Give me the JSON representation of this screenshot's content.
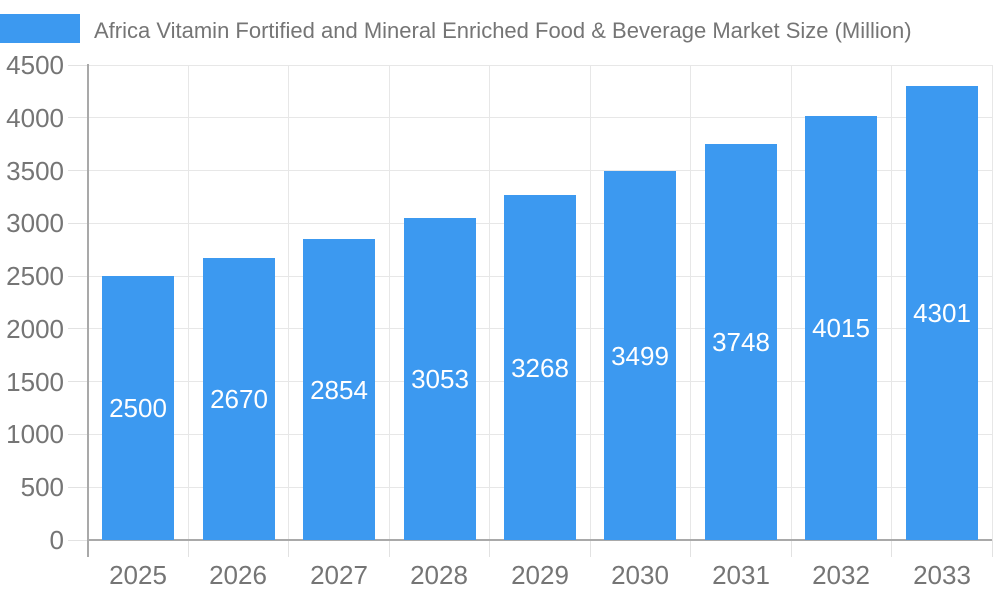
{
  "chart_data": {
    "type": "bar",
    "title": "Africa Vitamin Fortified and Mineral Enriched Food & Beverage Market Size (Million)",
    "categories": [
      "2025",
      "2026",
      "2027",
      "2028",
      "2029",
      "2030",
      "2031",
      "2032",
      "2033"
    ],
    "values": [
      2500,
      2670,
      2854,
      3053,
      3268,
      3499,
      3748,
      4015,
      4301
    ],
    "xlabel": "",
    "ylabel": "",
    "ylim": [
      0,
      4500
    ],
    "ytick_step": 500,
    "ytick_labels": [
      "0",
      "500",
      "1000",
      "1500",
      "2000",
      "2500",
      "3000",
      "3500",
      "4000",
      "4500"
    ],
    "grid": true,
    "legend_position": "top-left",
    "bar_labels_shown": true,
    "colors": {
      "bar": "#3c99f0",
      "bar_label_text": "#ffffff",
      "axis_text": "#757575",
      "title_text": "#757575",
      "gridline": "#e7e7e7",
      "axis_line": "#a9a9a9",
      "background": "#ffffff"
    }
  }
}
